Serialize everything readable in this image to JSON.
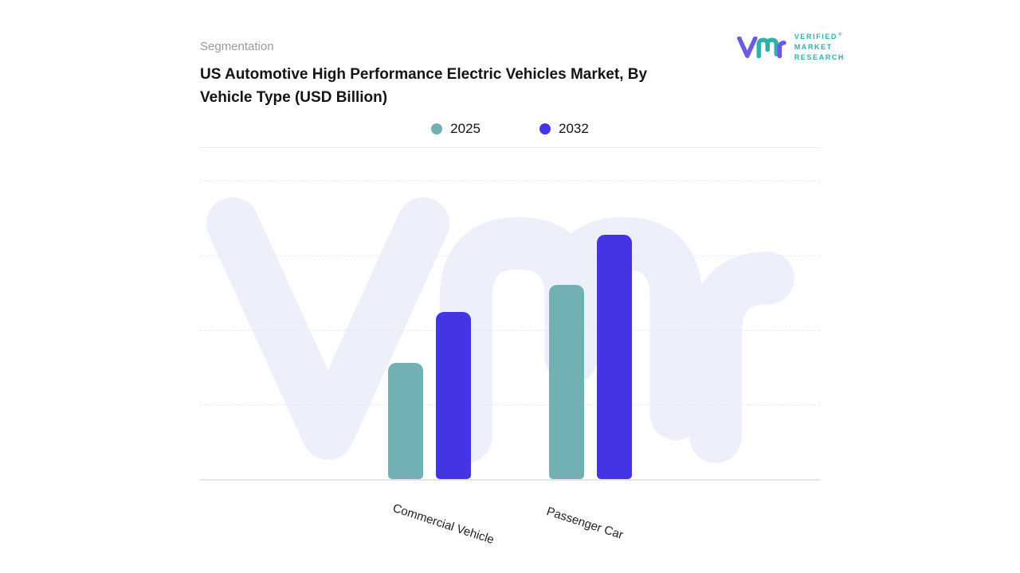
{
  "brand": {
    "name_lines": [
      "VERIFIED",
      "MARKET",
      "RESEARCH"
    ],
    "registered": "®",
    "teal": "#2fb0a8",
    "purple": "#6a5ae0"
  },
  "header": {
    "eyebrow": "Segmentation",
    "title": "US Automotive High Performance Electric Vehicles Market, By Vehicle Type (USD Billion)"
  },
  "chart_data": {
    "type": "bar",
    "title": "US Automotive High Performance Electric Vehicles Market, By Vehicle Type (USD Billion)",
    "categories": [
      "Commercial Vehicle",
      "Passenger Car"
    ],
    "series": [
      {
        "name": "2025",
        "color": "#72b0b4",
        "values": [
          39,
          65
        ]
      },
      {
        "name": "2032",
        "color": "#4334e4",
        "values": [
          56,
          82
        ]
      }
    ],
    "xlabel": "",
    "ylabel": "",
    "ylim": [
      0,
      100
    ],
    "grid": "horizontal-dashed",
    "legend_position": "top-center",
    "watermark_color": "#edeffa",
    "baseline_color": "#e3e3e3"
  }
}
